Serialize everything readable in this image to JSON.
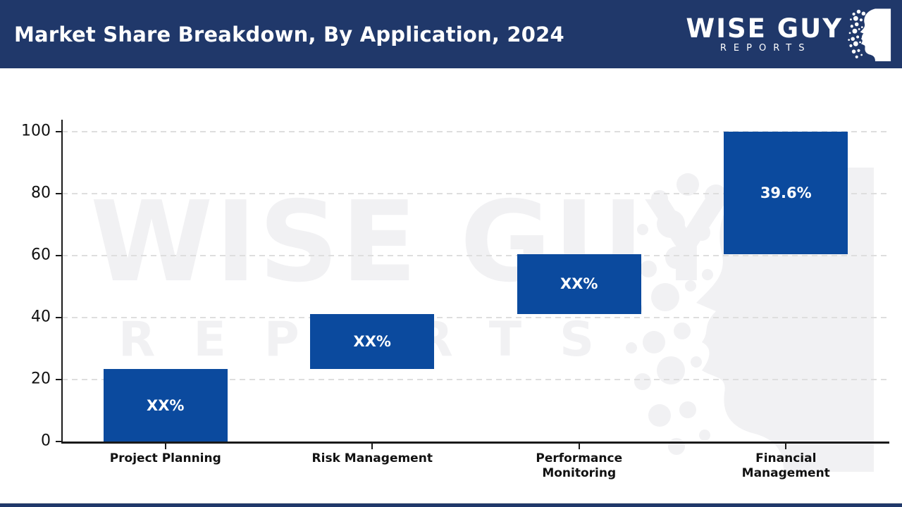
{
  "header": {
    "title": "Market Share Breakdown, By Application, 2024",
    "logo": {
      "line1": "WISE GUY",
      "line2": "REPORTS"
    }
  },
  "watermark": {
    "line1": "WISE GUY",
    "line2": "REPORTS"
  },
  "colors": {
    "header_bg": "#20386a",
    "bar": "#0b4a9e",
    "bar_label": "#ffffff",
    "grid": "#dedede",
    "axis": "#1a1a1a",
    "watermark": "#f1f1f3"
  },
  "chart_data": {
    "type": "bar",
    "subtype": "waterfall",
    "title": "Market Share Breakdown, By Application, 2024",
    "categories": [
      "Project Planning",
      "Risk Management",
      "Performance\nMonitoring",
      "Financial\nManagement"
    ],
    "segments": [
      {
        "category": "Project Planning",
        "start": 0,
        "end": 23.3,
        "value": 23.3,
        "label": "XX%"
      },
      {
        "category": "Risk Management",
        "start": 23.3,
        "end": 41.2,
        "value": 17.9,
        "label": "XX%"
      },
      {
        "category": "Performance Monitoring",
        "start": 41.2,
        "end": 60.4,
        "value": 19.2,
        "label": "XX%"
      },
      {
        "category": "Financial Management",
        "start": 60.4,
        "end": 100,
        "value": 39.6,
        "label": "39.6%"
      }
    ],
    "yticks": [
      0,
      20,
      40,
      60,
      80,
      100
    ],
    "ylim": [
      0,
      104
    ],
    "xlabel": "",
    "ylabel": "",
    "grid": "horizontal dashed",
    "legend": "none",
    "bar_color": "#0b4a9e",
    "label_color": "#ffffff"
  }
}
